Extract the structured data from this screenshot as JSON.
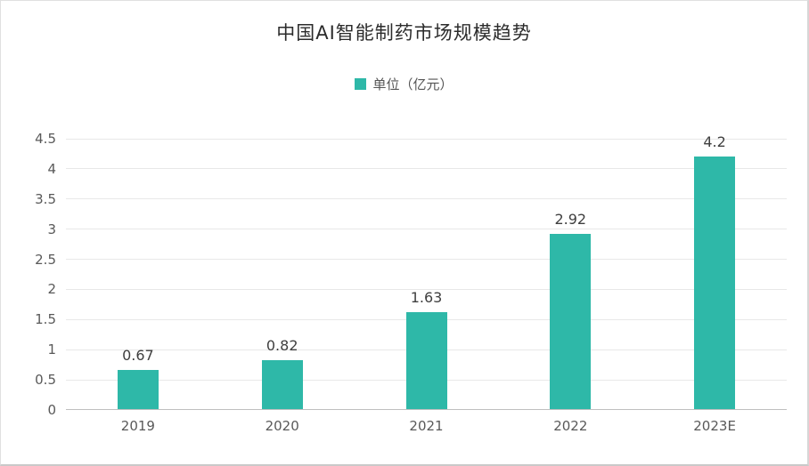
{
  "chart_data": {
    "type": "bar",
    "title": "中国AI智能制药市场规模趋势",
    "legend": [
      {
        "label": "单位（亿元）",
        "color": "#2eb8a8"
      }
    ],
    "legend_position": "top",
    "categories": [
      "2019",
      "2020",
      "2021",
      "2022",
      "2023E"
    ],
    "values": [
      0.67,
      0.82,
      1.63,
      2.92,
      4.2
    ],
    "data_labels": [
      "0.67",
      "0.82",
      "1.63",
      "2.92",
      "4.2"
    ],
    "xlabel": "",
    "ylabel": "",
    "ylim": [
      0,
      4.5
    ],
    "ytick_step": 0.5,
    "yticks": [
      "0",
      "0.5",
      "1",
      "1.5",
      "2",
      "2.5",
      "3",
      "3.5",
      "4",
      "4.5"
    ],
    "grid": true,
    "colors": {
      "bar": "#2eb8a8",
      "gridline": "#e8e8e8",
      "axis_line": "#bfbfbf",
      "axis_text": "#595959",
      "title_text": "#2b2b2b",
      "data_label_text": "#3f3f3f",
      "background": "#ffffff",
      "frame_border": "#d6d6d6"
    }
  }
}
